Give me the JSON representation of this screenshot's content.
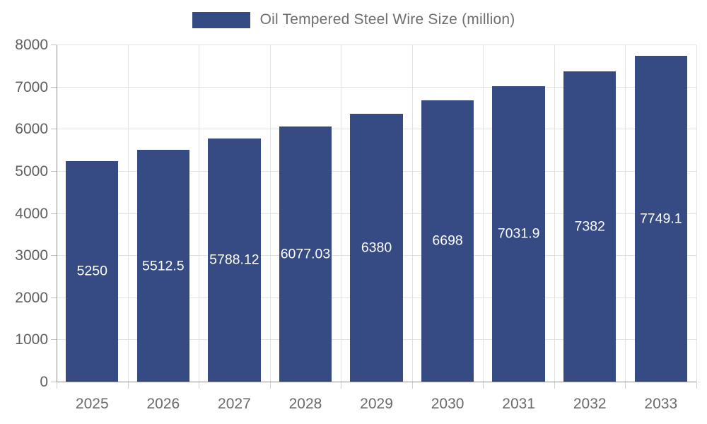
{
  "legend": {
    "label": "Oil Tempered Steel Wire Size (million)"
  },
  "chart_data": {
    "type": "bar",
    "title": "Oil Tempered Steel Wire Size (million)",
    "categories": [
      "2025",
      "2026",
      "2027",
      "2028",
      "2029",
      "2030",
      "2031",
      "2032",
      "2033"
    ],
    "values": [
      5250,
      5512.5,
      5788.12,
      6077.03,
      6380,
      6698,
      7031.9,
      7382,
      7749.1
    ],
    "bar_labels": [
      "5250",
      "5512.5",
      "5788.12",
      "6077.03",
      "6380",
      "6698",
      "7031.9",
      "7382",
      "7749.1"
    ],
    "xlabel": "",
    "ylabel": "",
    "ylim": [
      0,
      8000
    ],
    "yticks": [
      0,
      1000,
      2000,
      3000,
      4000,
      5000,
      6000,
      7000,
      8000
    ],
    "grid": true,
    "legend_position": "top-center",
    "bar_color": "#364a83"
  },
  "colors": {
    "bar": "#364a83",
    "legend_text": "#6e6e6e",
    "axis_text": "#5f5f5f",
    "gridline": "#e2e2e2",
    "axis_line": "#8f8f8f"
  }
}
